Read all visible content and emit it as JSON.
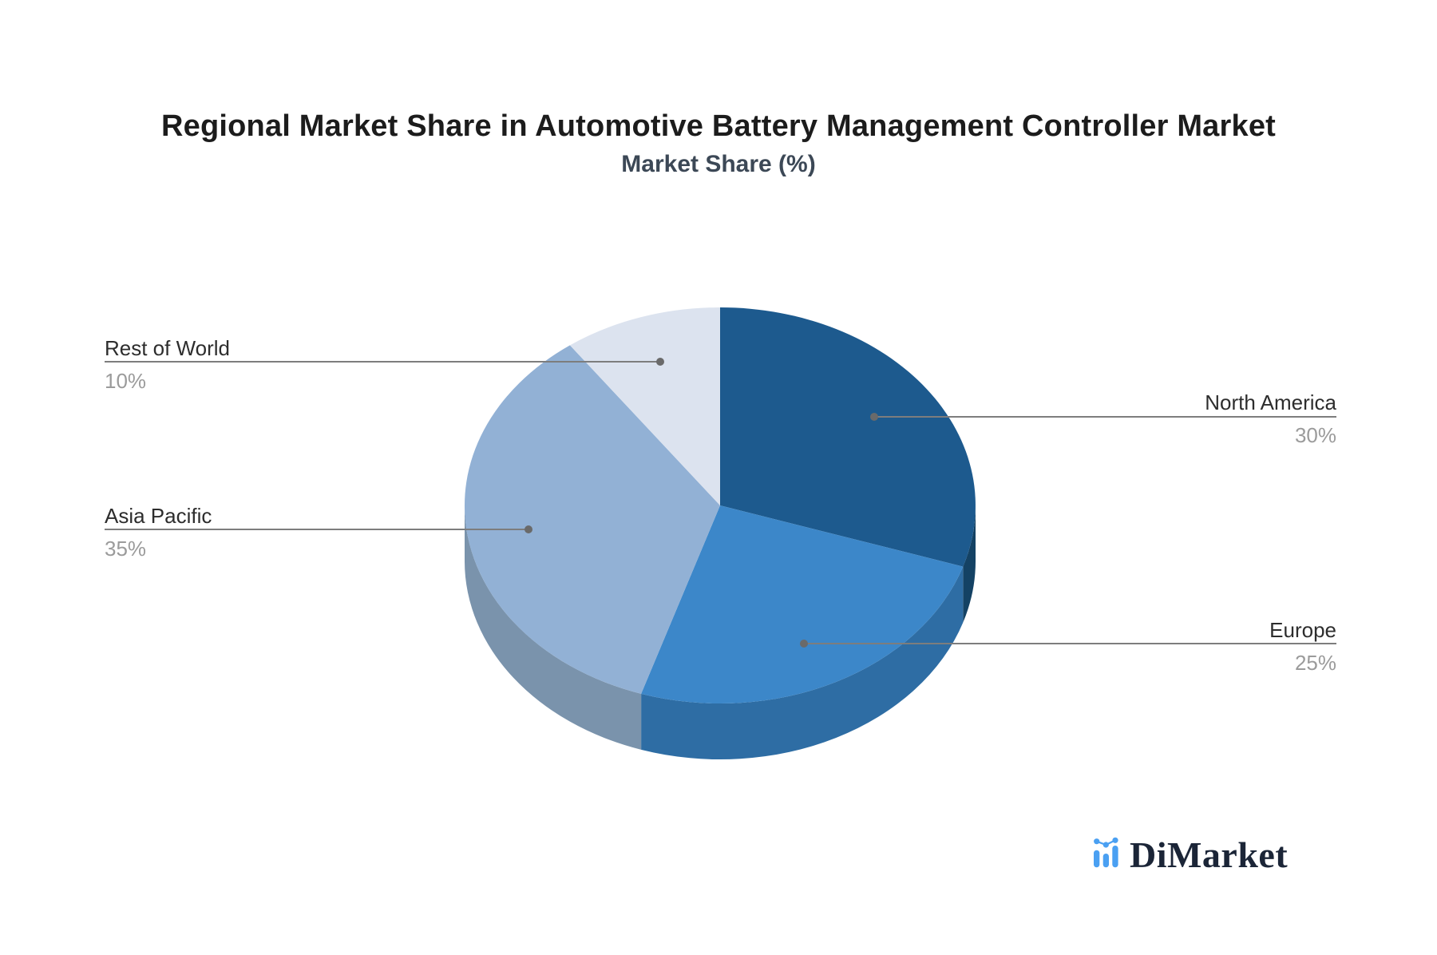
{
  "header": {
    "title": "Regional Market Share in Automotive Battery Management Controller Market",
    "subtitle": "Market Share (%)"
  },
  "chart_data": {
    "type": "pie",
    "style": "3d",
    "title": "Regional Market Share in Automotive Battery Management Controller Market",
    "subtitle": "Market Share (%)",
    "unit": "%",
    "start_angle_deg": 0,
    "direction": "clockwise",
    "legend": "none",
    "slices": [
      {
        "label": "North America",
        "value": 30,
        "pct_label": "30%",
        "color": "#1D5A8E",
        "side_color": "#144264",
        "label_side": "right"
      },
      {
        "label": "Europe",
        "value": 25,
        "pct_label": "25%",
        "color": "#3C87C9",
        "side_color": "#2E6DA4",
        "label_side": "right"
      },
      {
        "label": "Asia Pacific",
        "value": 35,
        "pct_label": "35%",
        "color": "#92B1D5",
        "side_color": "#7A93AC",
        "label_side": "left"
      },
      {
        "label": "Rest of World",
        "value": 10,
        "pct_label": "10%",
        "color": "#DCE3EF",
        "side_color": "#C5CFDF",
        "label_side": "left"
      }
    ],
    "connector_color": "#7D7D7D",
    "connector_dot_color": "#6A6A6A",
    "label_name_color": "#2D2D2D",
    "label_pct_color": "#9B9B9B"
  },
  "branding": {
    "name": "DiMarket",
    "brand_blue": "#4AA0F2",
    "text_color": "#1B2537"
  }
}
